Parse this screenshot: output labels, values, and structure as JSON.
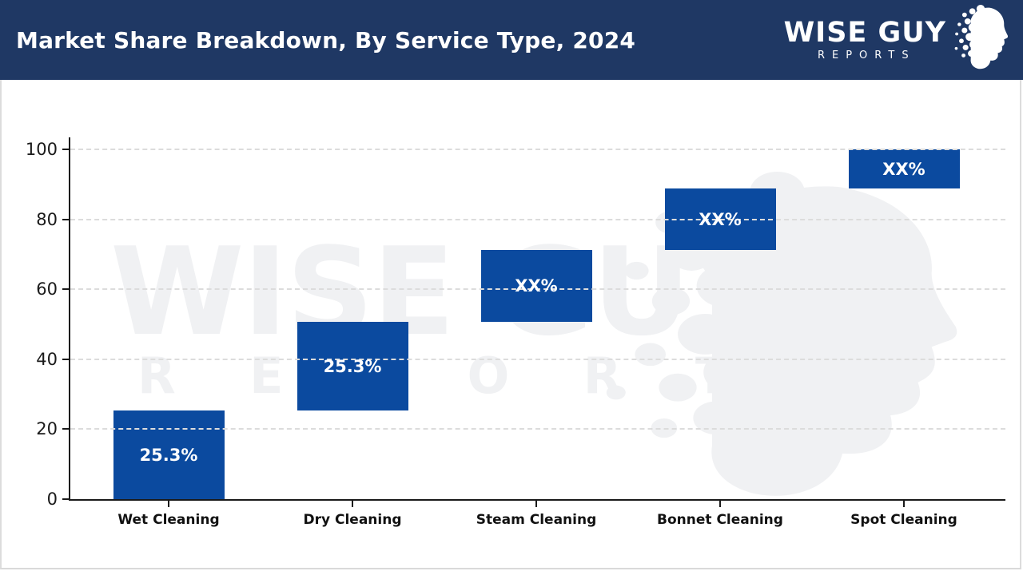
{
  "header": {
    "title": "Market Share Breakdown, By Service Type, 2024",
    "logo": {
      "brand": "WISE GUY",
      "sub": "REPORTS"
    }
  },
  "watermark": {
    "line1": "WISE GUY",
    "line2": "REPORTS"
  },
  "colors": {
    "header_bg": "#1f3864",
    "bar": "#0b4a9f",
    "grid": "#dcdcdc",
    "axis": "#1a1a1a",
    "watermark": "#f0f1f3",
    "bar_label_text": "#ffffff",
    "title_text": "#ffffff"
  },
  "chart_data": {
    "type": "bar",
    "subtype": "waterfall",
    "title": "Market Share Breakdown, By Service Type, 2024",
    "categories": [
      "Wet Cleaning",
      "Dry Cleaning",
      "Steam Cleaning",
      "Bonnet Cleaning",
      "Spot Cleaning"
    ],
    "segments": [
      {
        "category": "Wet Cleaning",
        "start": 0,
        "end": 25.3,
        "label": "25.3%"
      },
      {
        "category": "Dry Cleaning",
        "start": 25.3,
        "end": 50.6,
        "label": "25.3%"
      },
      {
        "category": "Steam Cleaning",
        "start": 50.6,
        "end": 71.2,
        "label": "XX%"
      },
      {
        "category": "Bonnet Cleaning",
        "start": 71.2,
        "end": 88.7,
        "label": "XX%"
      },
      {
        "category": "Spot Cleaning",
        "start": 88.7,
        "end": 100,
        "label": "XX%"
      }
    ],
    "yticks": [
      0,
      20,
      40,
      60,
      80,
      100
    ],
    "ylim": [
      0,
      103.5
    ],
    "xlabel": "",
    "ylabel": "",
    "grid": "horizontal-dashed",
    "legend": null
  }
}
